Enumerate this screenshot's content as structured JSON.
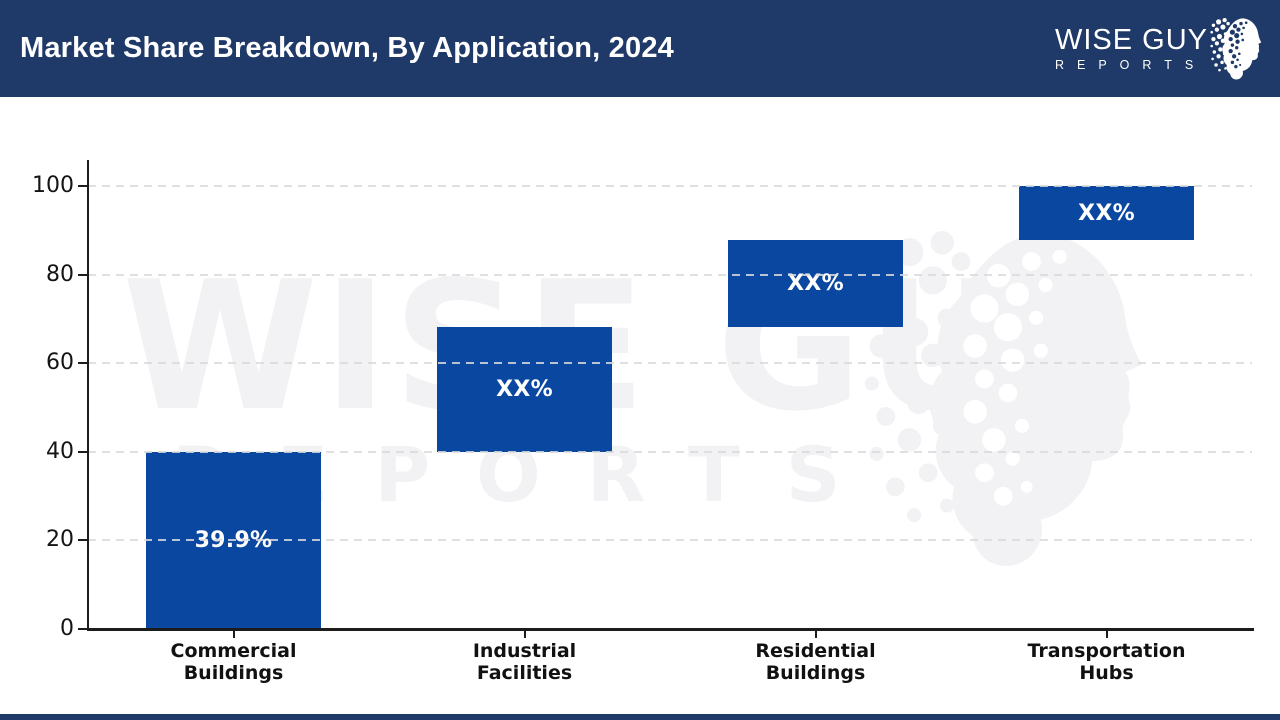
{
  "header": {
    "title": "Market Share Breakdown, By Application, 2024",
    "logo": {
      "line1": "WISE GUY",
      "line2": "REPORTS"
    },
    "bg_color": "#1f3a68"
  },
  "watermark": {
    "line1": "WISE GU",
    "line2": "REPORTS"
  },
  "chart_data": {
    "type": "bar",
    "subtype": "floating-waterfall",
    "title": "Market Share Breakdown, By Application, 2024",
    "categories": [
      "Commercial Buildings",
      "Industrial Facilities",
      "Residential Buildings",
      "Transportation Hubs"
    ],
    "category_lines": [
      [
        "Commercial",
        "Buildings"
      ],
      [
        "Industrial",
        "Facilities"
      ],
      [
        "Residential",
        "Buildings"
      ],
      [
        "Transportation",
        "Hubs"
      ]
    ],
    "series": [
      {
        "name": "Market share (%)",
        "segments": [
          {
            "category": "Commercial Buildings",
            "start": 0,
            "end": 39.9,
            "label": "39.9%"
          },
          {
            "category": "Industrial Facilities",
            "start": 39.9,
            "end": 68.2,
            "label": "XX%"
          },
          {
            "category": "Residential Buildings",
            "start": 68.2,
            "end": 87.8,
            "label": "XX%"
          },
          {
            "category": "Transportation Hubs",
            "start": 87.8,
            "end": 100,
            "label": "XX%"
          }
        ]
      }
    ],
    "ylim": [
      0,
      100
    ],
    "yticks": [
      0,
      20,
      40,
      60,
      80,
      100
    ],
    "grid": {
      "axis": "y",
      "style": "dashed",
      "color": "#dadadc",
      "above_bars": true
    },
    "legend": "none",
    "bar_color": "#0a47a0",
    "bar_label_color": "#ffffff",
    "axis_color": "#1c1c1c"
  }
}
